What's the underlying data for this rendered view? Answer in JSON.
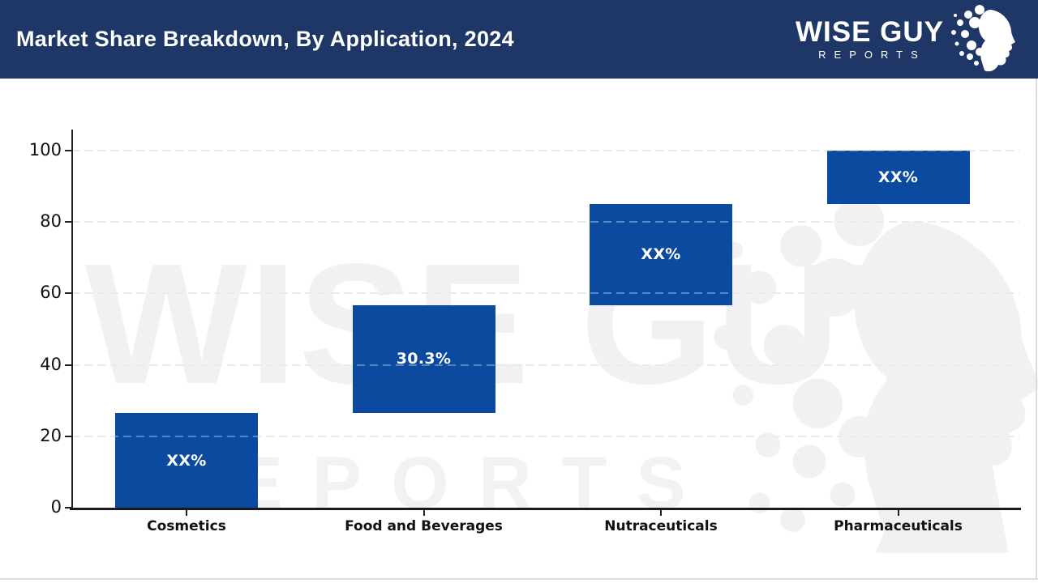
{
  "header": {
    "title": "Market Share Breakdown, By Application, 2024",
    "logo": {
      "line1": "WISE GUY",
      "line2": "REPORTS"
    }
  },
  "watermark": {
    "line1": "WISE GUY",
    "line2": "REPORTS"
  },
  "colors": {
    "header_bg": "#1f3767",
    "bar": "#0b4a9e",
    "bar_label_text": "#ffffff",
    "grid": "#e1e1e1",
    "axis": "#1a1a1a",
    "watermark": "#f1f1f1"
  },
  "chart_data": {
    "type": "bar",
    "subtype": "floating-waterfall",
    "title": "Market Share Breakdown, By Application, 2024",
    "xlabel": "",
    "ylabel": "",
    "categories": [
      "Cosmetics",
      "Food and Beverages",
      "Nutraceuticals",
      "Pharmaceuticals"
    ],
    "segments": [
      {
        "category": "Cosmetics",
        "start": 0,
        "end": 26.5,
        "label": "XX%"
      },
      {
        "category": "Food and Beverages",
        "start": 26.5,
        "end": 56.8,
        "label": "30.3%"
      },
      {
        "category": "Nutraceuticals",
        "start": 56.8,
        "end": 85.0,
        "label": "XX%"
      },
      {
        "category": "Pharmaceuticals",
        "start": 85.0,
        "end": 100.0,
        "label": "XX%"
      }
    ],
    "ylim": [
      0,
      100
    ],
    "yticks": [
      0,
      20,
      40,
      60,
      80,
      100
    ],
    "grid": "horizontal-dashed",
    "legend": "none"
  }
}
